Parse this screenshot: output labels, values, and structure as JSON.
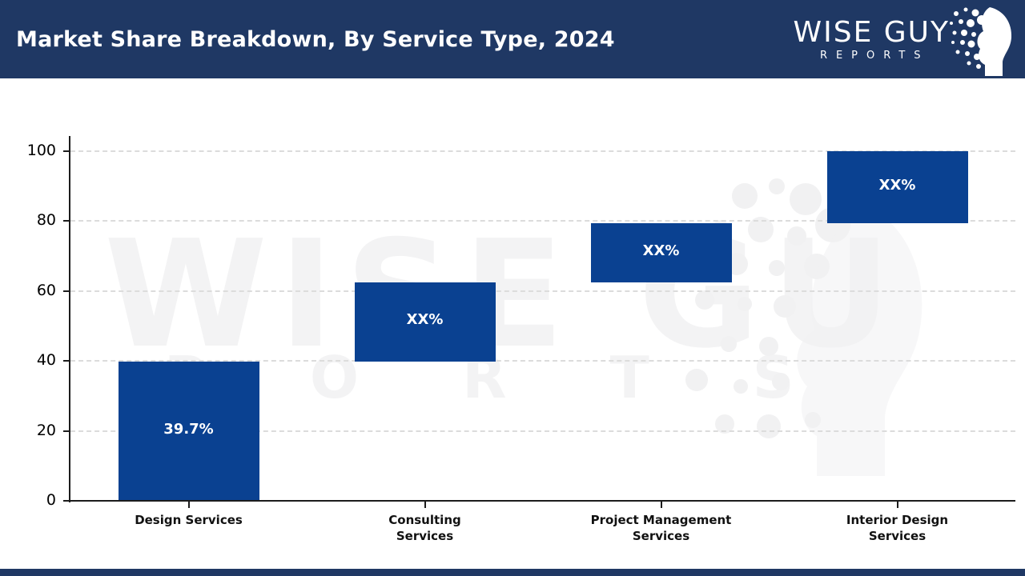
{
  "header": {
    "title": "Market Share Breakdown, By Service Type, 2024",
    "bg_color": "#1f3864",
    "logo": {
      "line1": "WISE GUY",
      "line2": "REPORTS"
    }
  },
  "watermark": {
    "line1": "WISE GU",
    "line2": "P O R T S"
  },
  "chart_data": {
    "type": "bar",
    "variant": "stacked-waterfall",
    "title": "Market Share Breakdown, By Service Type, 2024",
    "categories": [
      "Design Services",
      "Consulting Services",
      "Project Management Services",
      "Interior Design Services"
    ],
    "category_lines": [
      [
        "Design Services"
      ],
      [
        "Consulting",
        "Services"
      ],
      [
        "Project Management",
        "Services"
      ],
      [
        "Interior Design",
        "Services"
      ]
    ],
    "segments": [
      {
        "category": "Design Services",
        "start": 0,
        "end": 39.7,
        "label": "39.7%"
      },
      {
        "category": "Consulting Services",
        "start": 39.7,
        "end": 62.5,
        "label": "XX%"
      },
      {
        "category": "Project Management Services",
        "start": 62.5,
        "end": 79.3,
        "label": "XX%"
      },
      {
        "category": "Interior Design Services",
        "start": 79.3,
        "end": 100,
        "label": "XX%"
      }
    ],
    "bar_labels": [
      "39.7%",
      "XX%",
      "XX%",
      "XX%"
    ],
    "ylim": [
      0,
      100
    ],
    "yticks": [
      0,
      20,
      40,
      60,
      80,
      100
    ],
    "grid": "horizontal-dashed",
    "legend": "none",
    "xlabel": "",
    "ylabel": "",
    "bar_color": "#0a4191",
    "bar_label_color": "#ffffff",
    "axis_color": "#1c1c1c",
    "gridline_color": "#dcdcdc"
  }
}
